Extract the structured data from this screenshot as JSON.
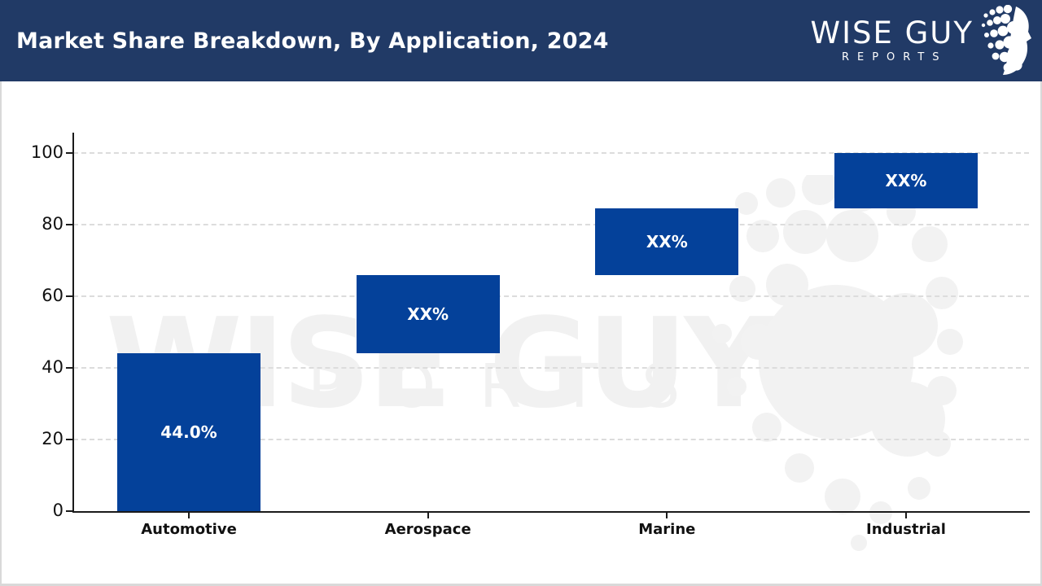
{
  "header": {
    "title": "Market Share Breakdown, By Application, 2024",
    "logo_line1": "WISE GUY",
    "logo_line2": "REPORTS",
    "bg_color": "#213a66"
  },
  "watermark": {
    "line1": "WISE GUY",
    "line2": "REPORTS",
    "color": "#f1f1f1"
  },
  "chart_data": {
    "type": "bar",
    "subtype": "waterfall",
    "title": "Market Share Breakdown, By Application, 2024",
    "categories": [
      "Automotive",
      "Aerospace",
      "Marine",
      "Industrial"
    ],
    "segments": [
      [
        0,
        44
      ],
      [
        44,
        66
      ],
      [
        66,
        84.5
      ],
      [
        84.5,
        100
      ]
    ],
    "values_pct": [
      44.0,
      22.0,
      18.5,
      15.5
    ],
    "bar_labels": [
      "44.0%",
      "XX%",
      "XX%",
      "XX%"
    ],
    "yticks": [
      0,
      20,
      40,
      60,
      80,
      100
    ],
    "ylim": [
      0,
      105
    ],
    "xlabel": "",
    "ylabel": "",
    "legend": "none",
    "grid": "horizontal-dashed",
    "bar_color": "#04419a",
    "bar_label_color": "#ffffff",
    "gridline_color": "#dcdcdc",
    "axis_color": "#1a1a1a"
  }
}
